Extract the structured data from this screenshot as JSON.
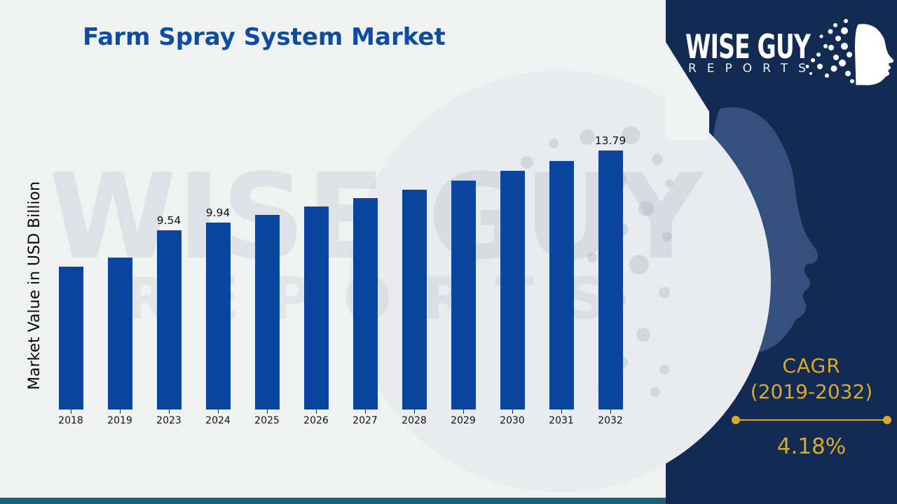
{
  "chart_data": {
    "type": "bar",
    "title": "Farm Spray System Market",
    "ylabel": "Market Value in USD Billion",
    "xlabel": "",
    "categories": [
      "2018",
      "2019",
      "2023",
      "2024",
      "2025",
      "2026",
      "2027",
      "2028",
      "2029",
      "2030",
      "2031",
      "2032"
    ],
    "values": [
      7.6,
      8.1,
      9.54,
      9.94,
      10.36,
      10.79,
      11.24,
      11.71,
      12.2,
      12.71,
      13.24,
      13.79
    ],
    "bar_labels": [
      "",
      "",
      "9.54",
      "9.94",
      "",
      "",
      "",
      "",
      "",
      "",
      "",
      "13.79"
    ],
    "ylim": [
      0,
      14.5
    ],
    "grid": false,
    "legend": null,
    "bar_color": "#0c45a0"
  },
  "watermark": {
    "line1": "WISE GUY",
    "line2": "REPORTS"
  },
  "logo": {
    "line1": "WISE GUY",
    "line2": "REPORTS"
  },
  "cagr": {
    "label": "CAGR",
    "range": "(2019-2032)",
    "value": "4.18%"
  },
  "colors": {
    "background": "#f0f1f1",
    "bar_blue": "#0c45a0",
    "title_blue": "#0c4da2",
    "panel_navy": "#132a52",
    "face_blue": "#33507f",
    "accent_gold": "#d9a92a",
    "bottom_teal": "#1a5f78",
    "circle_gray": "#e9ebee"
  }
}
